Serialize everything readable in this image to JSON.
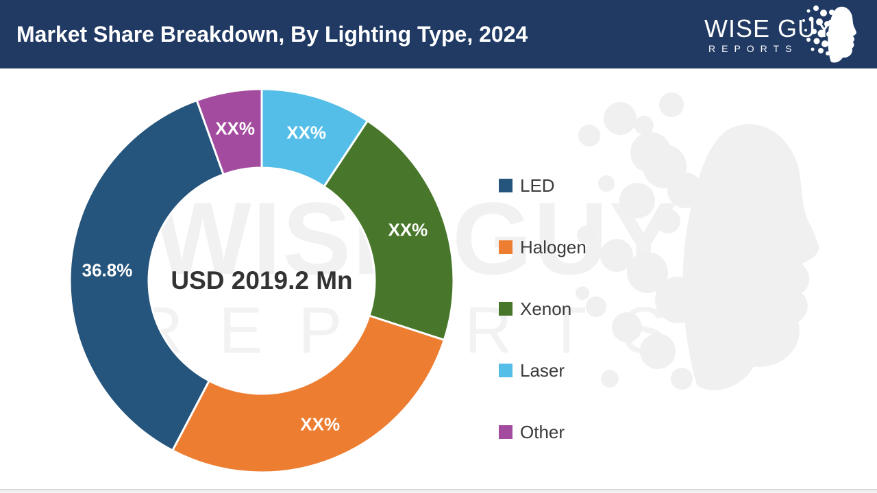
{
  "header": {
    "title": "Market Share Breakdown, By Lighting Type, 2024",
    "logo": {
      "name": "WISE GUY",
      "sub": "REPORTS"
    }
  },
  "watermark": {
    "line1": "WISE GUY",
    "line2": "REPORTS"
  },
  "chart_data": {
    "type": "donut",
    "title": "Market Share Breakdown, By Lighting Type, 2024",
    "center_label": "USD 2019.2 Mn",
    "categories": [
      "LED",
      "Halogen",
      "Xenon",
      "Laser",
      "Other"
    ],
    "values": [
      36.8,
      27.7,
      20.7,
      9.3,
      5.5
    ],
    "slice_labels": [
      "36.8%",
      "XX%",
      "XX%",
      "XX%",
      "XX%"
    ],
    "colors": [
      "#25547c",
      "#ed7d31",
      "#48772b",
      "#54bee8",
      "#a34b9e"
    ],
    "draw_order_clockwise_from_top": [
      "Laser",
      "Xenon",
      "Halogen",
      "LED",
      "Other"
    ],
    "legend_position": "right",
    "hole_ratio": 0.59,
    "slice_label_color": "#ffffff"
  }
}
